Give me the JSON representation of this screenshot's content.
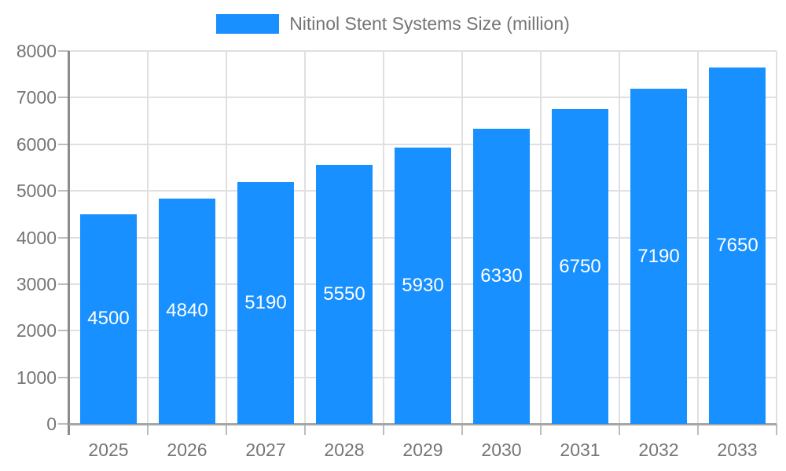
{
  "legend": {
    "label": "Nitinol Stent Systems Size (million)"
  },
  "chart_data": {
    "type": "bar",
    "title": "Nitinol Stent Systems Size (million)",
    "categories": [
      "2025",
      "2026",
      "2027",
      "2028",
      "2029",
      "2030",
      "2031",
      "2032",
      "2033"
    ],
    "series": [
      {
        "name": "Nitinol Stent Systems Size (million)",
        "values": [
          4500,
          4840,
          5190,
          5550,
          5930,
          6330,
          6750,
          7190,
          7650
        ]
      }
    ],
    "value_labels_position": "inside-center",
    "xlabel": "",
    "ylabel": "",
    "ylim": [
      0,
      8000
    ],
    "ytick_step": 1000,
    "yticks": [
      0,
      1000,
      2000,
      3000,
      4000,
      5000,
      6000,
      7000,
      8000
    ],
    "grid": true,
    "legend_position": "top-center",
    "colors": {
      "bar": "#1890ff",
      "bar_label": "#ffffff",
      "axis_text": "#757575",
      "grid_line": "#e0e0e0",
      "axis_line_y": "#8c8c8c",
      "axis_line_x": "#a6a6a6",
      "tick_line": "#bdbdbd"
    }
  }
}
